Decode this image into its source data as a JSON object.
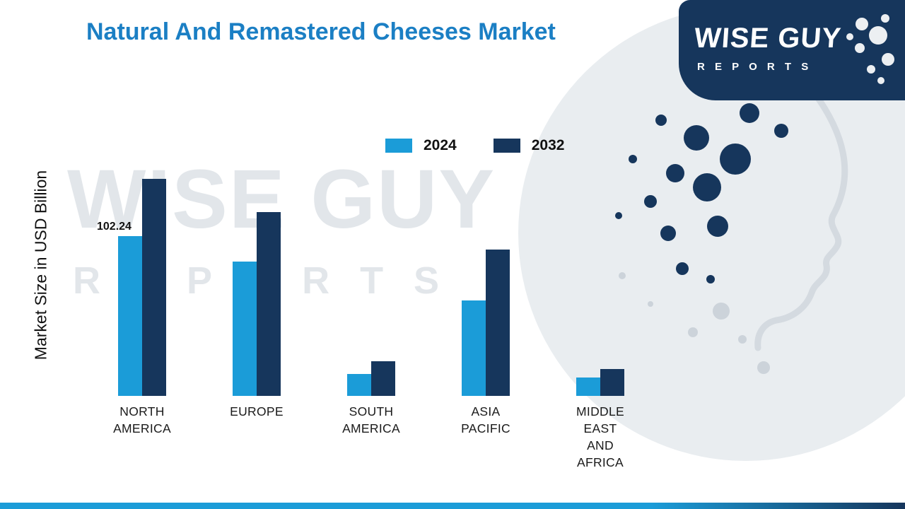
{
  "page": {
    "title": "Natural And Remastered Cheeses Market",
    "accent_color": "#1b7fc4",
    "background_color": "#ffffff"
  },
  "logo": {
    "line1": "WISE GUY",
    "line2": "R E P O R T S",
    "background_color": "#16365c",
    "text_color": "#ffffff"
  },
  "watermark": {
    "line1": "WISE GUY",
    "line2": "R E P O R T S",
    "color": "#e2e6ea"
  },
  "chart_data": {
    "type": "bar",
    "title": "Natural And Remastered Cheeses Market",
    "xlabel": "",
    "ylabel": "Market Size in USD Billion",
    "ylim": [
      0,
      145
    ],
    "grid": false,
    "legend_position": "top",
    "categories": [
      "NORTH AMERICA",
      "EUROPE",
      "SOUTH AMERICA",
      "ASIA PACIFIC",
      "MIDDLE EAST AND AFRICA"
    ],
    "category_labels": [
      "NORTH\nAMERICA",
      "EUROPE",
      "SOUTH\nAMERICA",
      "ASIA\nPACIFIC",
      "MIDDLE\nEAST\nAND\nAFRICA"
    ],
    "series": [
      {
        "name": "2024",
        "color": "#1b9cd8",
        "values": [
          102.24,
          86,
          14,
          61,
          12
        ]
      },
      {
        "name": "2032",
        "color": "#16365c",
        "values": [
          139,
          118,
          22,
          94,
          17
        ]
      }
    ],
    "annotations": [
      {
        "series": 0,
        "category": 0,
        "text": "102.24"
      }
    ]
  }
}
